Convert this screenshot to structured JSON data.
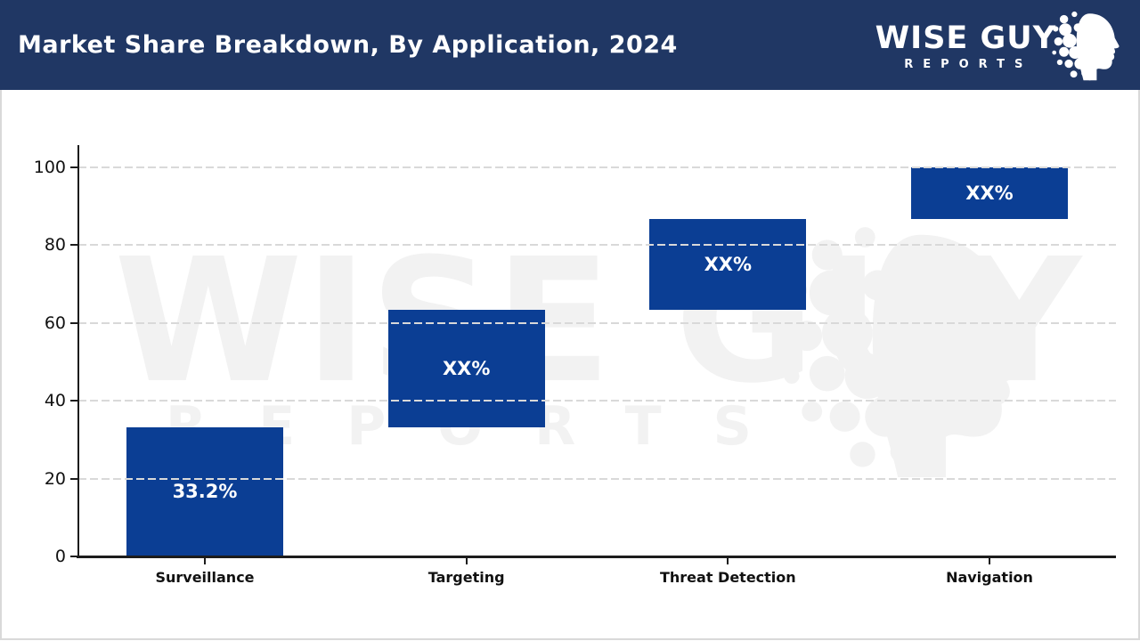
{
  "header": {
    "title": "Market Share Breakdown, By Application, 2024",
    "bg_color": "#203764",
    "logo": {
      "line1": "WISE GUY",
      "line2": "REPORTS"
    }
  },
  "watermark": {
    "line1": "WISE GUY",
    "line2": "REPORTS"
  },
  "chart_data": {
    "type": "bar",
    "subtype": "waterfall-floating-bars",
    "title": "Market Share Breakdown, By Application, 2024",
    "categories": [
      "Surveillance",
      "Targeting",
      "Threat Detection",
      "Navigation"
    ],
    "segments": [
      {
        "category": "Surveillance",
        "start": 0,
        "end": 33.2,
        "label": "33.2%"
      },
      {
        "category": "Targeting",
        "start": 33.2,
        "end": 63.4,
        "label": "XX%"
      },
      {
        "category": "Threat Detection",
        "start": 63.4,
        "end": 86.6,
        "label": "XX%"
      },
      {
        "category": "Navigation",
        "start": 86.6,
        "end": 100,
        "label": "XX%"
      }
    ],
    "xlabel": "",
    "ylabel": "",
    "y_ticks": [
      0,
      20,
      40,
      60,
      80,
      100
    ],
    "ylim": [
      0,
      105
    ],
    "bar_color": "#0b3e94",
    "grid": "horizontal-dashed",
    "grid_color": "#d9d9d9",
    "legend": "none"
  }
}
